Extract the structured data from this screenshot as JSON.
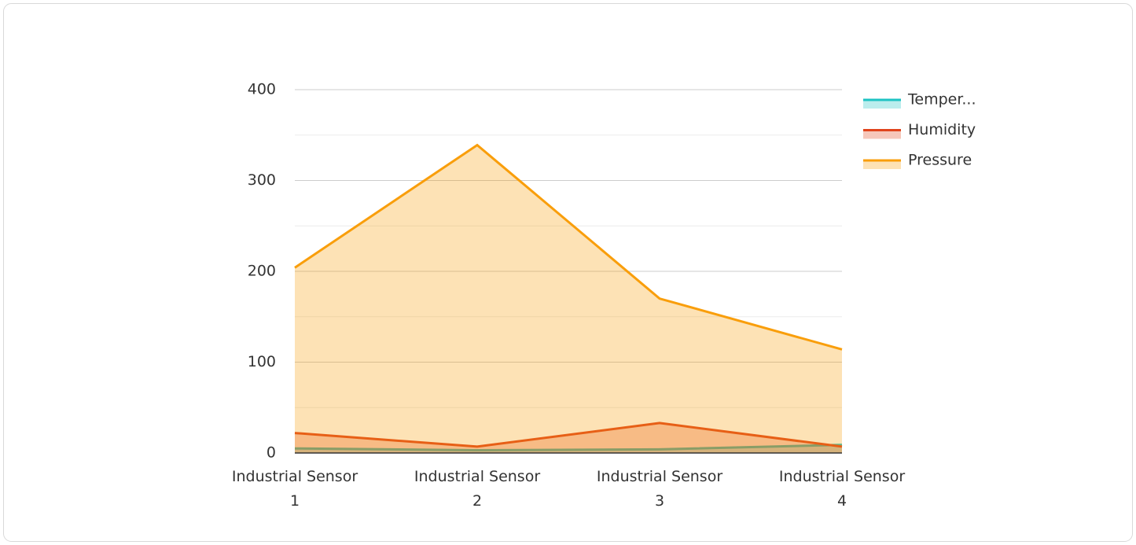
{
  "chart_data": {
    "type": "area",
    "categories": [
      "Industrial Sensor 1",
      "Industrial Sensor 2",
      "Industrial Sensor 3",
      "Industrial Sensor 4"
    ],
    "series": [
      {
        "name": "Temper...",
        "color": "#1fc3c3",
        "values": [
          5,
          3,
          4,
          9
        ]
      },
      {
        "name": "Humidity",
        "color": "#e0441c",
        "values": [
          22,
          7,
          33,
          7
        ]
      },
      {
        "name": "Pressure",
        "color": "#f99e0b",
        "values": [
          204,
          339,
          170,
          114
        ]
      }
    ],
    "ylim": [
      0,
      400
    ],
    "yticks": [
      0,
      100,
      200,
      300,
      400
    ],
    "minor_yticks": [
      50,
      150,
      250,
      350
    ],
    "grid": true,
    "legend": "right"
  }
}
